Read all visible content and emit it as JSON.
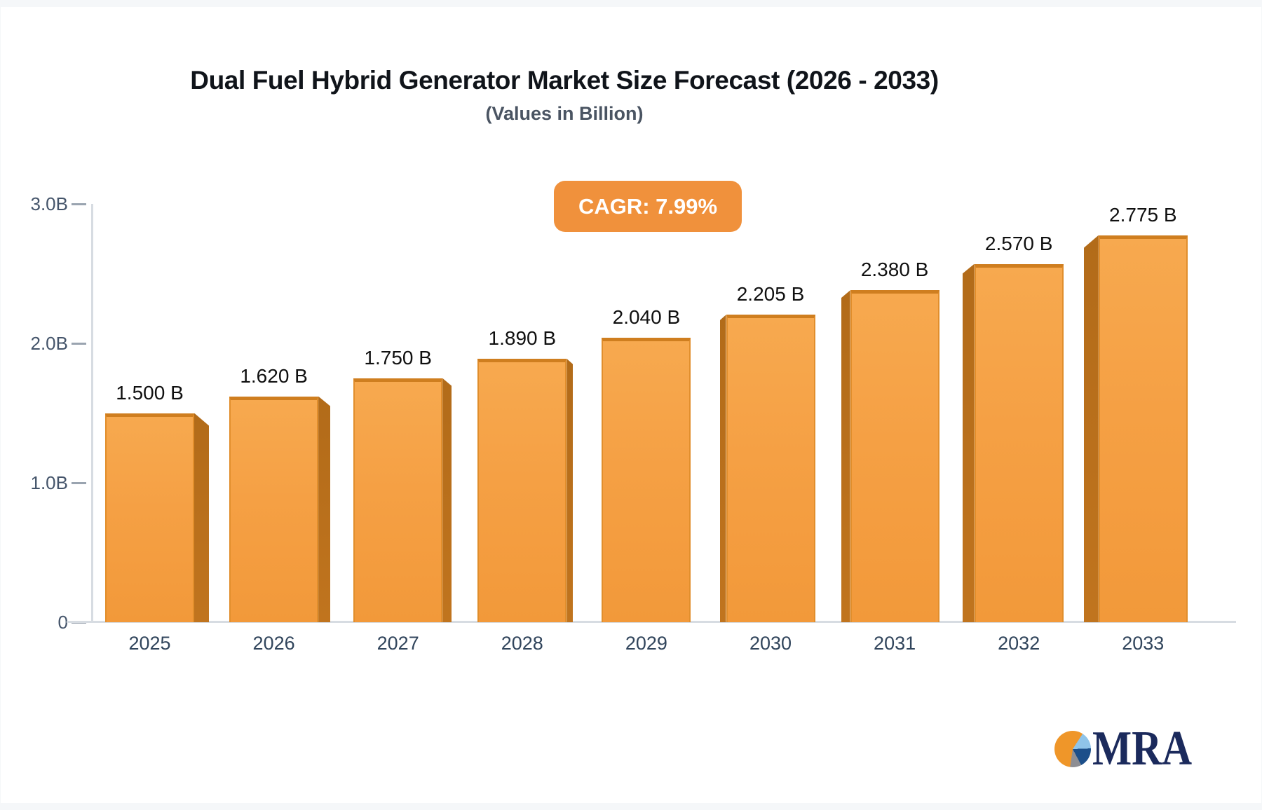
{
  "chart_data": {
    "type": "bar",
    "title": "Dual Fuel Hybrid Generator Market Size Forecast (2026 - 2033)",
    "subtitle": "(Values in Billion)",
    "cagr_label": "CAGR: 7.99%",
    "categories": [
      "2025",
      "2026",
      "2027",
      "2028",
      "2029",
      "2030",
      "2031",
      "2032",
      "2033"
    ],
    "values": [
      1.5,
      1.62,
      1.75,
      1.89,
      2.04,
      2.205,
      2.38,
      2.57,
      2.775
    ],
    "value_labels": [
      "1.500 B",
      "1.620 B",
      "1.750 B",
      "1.890 B",
      "2.040 B",
      "2.205 B",
      "2.380 B",
      "2.570 B",
      "2.775 B"
    ],
    "xlabel": "",
    "ylabel": "",
    "ylim": [
      0,
      3
    ],
    "y_ticks": [
      {
        "label": "3.0B",
        "value": 3.0
      },
      {
        "label": "2.0B",
        "value": 2.0
      },
      {
        "label": "1.0B",
        "value": 1.0
      },
      {
        "label": "0",
        "value": 0.0
      }
    ],
    "grid": "off",
    "legend": "none",
    "bar_style": "3d-perspective",
    "colors": {
      "bar_front": "#F5A044",
      "bar_side": "#B96F1C",
      "bar_top_edge": "#CF7E1F",
      "badge": "#F0913C",
      "badge_text": "#FFFFFF",
      "axis_line": "#D7DCE2",
      "tick": "#9AA4B0",
      "axis_text": "#44546A",
      "category_text": "#31455C",
      "value_text": "#101010",
      "title_text": "#10141A",
      "subtitle_text": "#4A5462"
    }
  },
  "logo": {
    "text": "MRA",
    "icon": "pie-chart-logo-icon",
    "text_color": "#1B2A5C"
  }
}
